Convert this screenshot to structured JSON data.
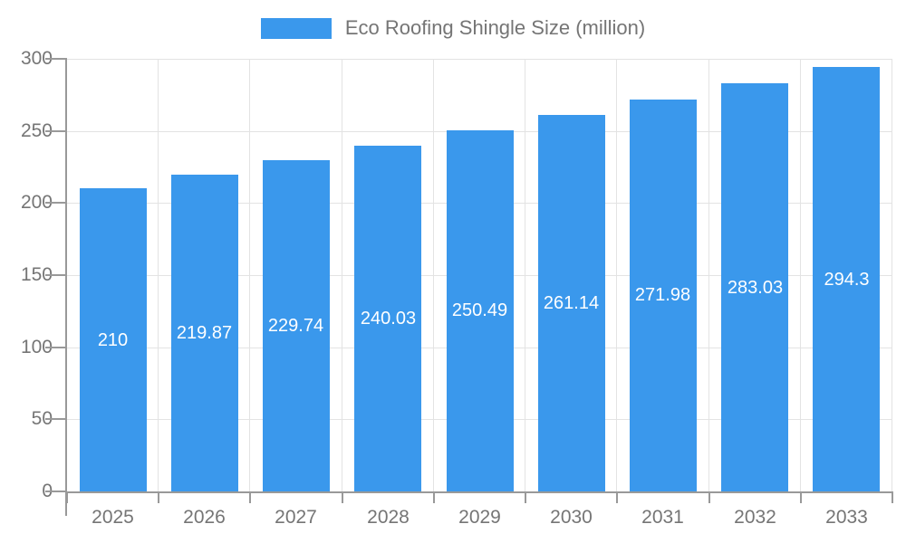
{
  "chart_data": {
    "type": "bar",
    "title": "Eco Roofing Shingle Size (million)",
    "series_name": "Eco Roofing Shingle Size (million)",
    "categories": [
      "2025",
      "2026",
      "2027",
      "2028",
      "2029",
      "2030",
      "2031",
      "2032",
      "2033"
    ],
    "values": [
      210,
      219.87,
      229.74,
      240.03,
      250.49,
      261.14,
      271.98,
      283.03,
      294.3
    ],
    "value_labels": [
      "210",
      "219.87",
      "229.74",
      "240.03",
      "250.49",
      "261.14",
      "271.98",
      "283.03",
      "294.3"
    ],
    "xlabel": "",
    "ylabel": "",
    "ylim": [
      0,
      300
    ],
    "yticks": [
      0,
      50,
      100,
      150,
      200,
      250,
      300
    ],
    "grid": true,
    "legend_position": "top",
    "label_position": "inside-middle",
    "colors": {
      "bar": "#3A98EC",
      "bar_label": "#FFFFFF",
      "axis_line": "#999999",
      "grid_line": "#E3E3E3",
      "axis_text": "#757575",
      "legend_text": "#757575",
      "background": "#FFFFFF"
    }
  }
}
